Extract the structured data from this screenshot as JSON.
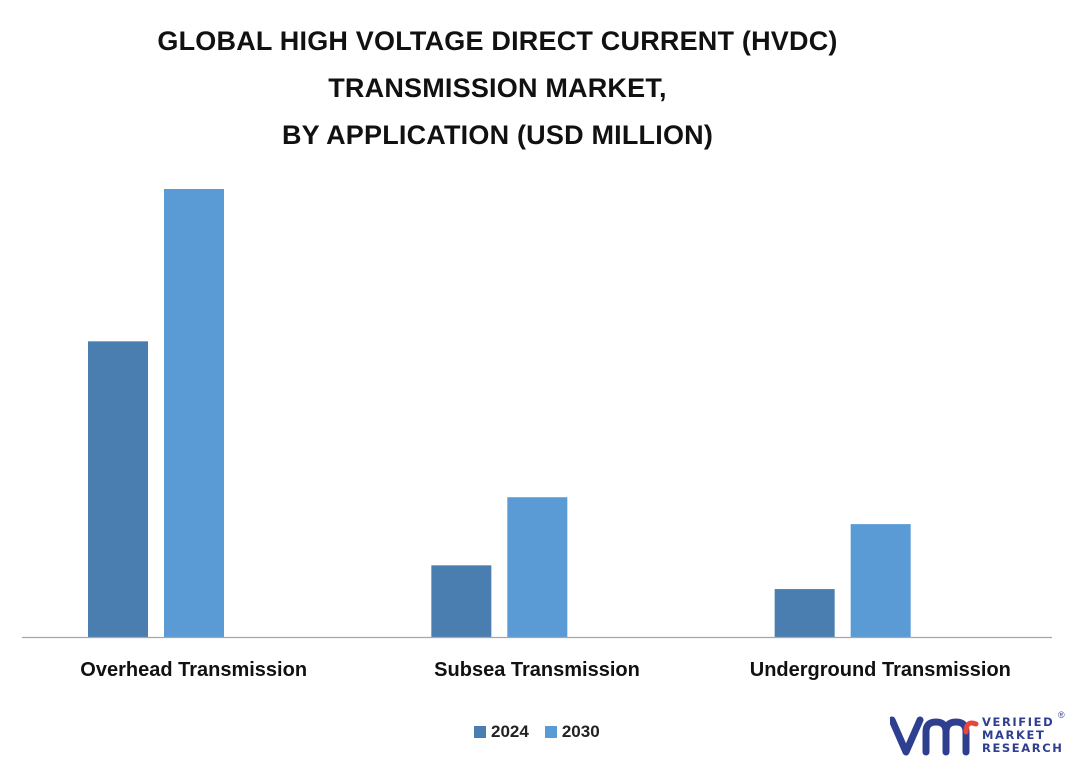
{
  "chart_data": {
    "type": "bar",
    "title_lines": [
      "GLOBAL HIGH VOLTAGE DIRECT CURRENT (HVDC)",
      "TRANSMISSION MARKET,",
      "BY APPLICATION (USD MILLION)"
    ],
    "categories": [
      "Overhead Transmission",
      "Subsea Transmission",
      "Underground Transmission"
    ],
    "series": [
      {
        "name": "2024",
        "color": "#4a7eb0",
        "values": [
          66,
          16,
          10.7
        ]
      },
      {
        "name": "2030",
        "color": "#5b9bd5",
        "values": [
          100,
          31.2,
          25.2
        ]
      }
    ],
    "ylim": [
      0,
      100
    ],
    "grid": false,
    "y_axis_visible": false,
    "legend_position": "bottom-center",
    "xlabel": "",
    "ylabel": ""
  },
  "branding": {
    "logo_lines": [
      "VERIFIED",
      "MARKET",
      "RESEARCH"
    ],
    "registered_mark": "®",
    "color": "#2f3f8f",
    "icon": "vmr-logo-icon"
  }
}
